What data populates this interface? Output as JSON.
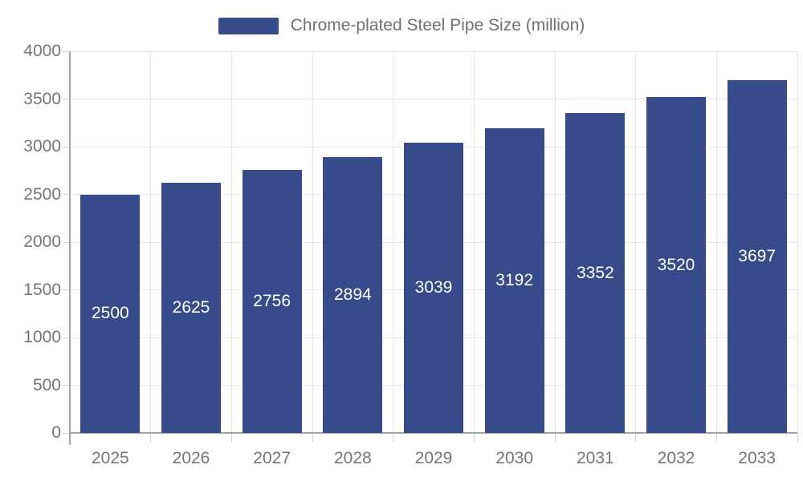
{
  "legend": {
    "label": "Chrome-plated Steel Pipe Size (million)"
  },
  "colors": {
    "bar": "#374b8c",
    "legend_swatch": "#374b8c",
    "legend_text": "#6e7079",
    "axis_label_text": "#757575",
    "grid_line": "#e6e6e6",
    "axis_line": "#a3a3a3",
    "tick_line": "#d4d4d4",
    "value_label_text": "#ffffff",
    "background": "#ffffff"
  },
  "chart_data": {
    "type": "bar",
    "categories": [
      "2025",
      "2026",
      "2027",
      "2028",
      "2029",
      "2030",
      "2031",
      "2032",
      "2033"
    ],
    "series": [
      {
        "name": "Chrome-plated Steel Pipe Size (million)",
        "values": [
          2500,
          2625,
          2756,
          2894,
          3039,
          3192,
          3352,
          3520,
          3697
        ]
      }
    ],
    "title": "",
    "xlabel": "",
    "ylabel": "",
    "ylim": [
      0,
      4000
    ],
    "yticks": [
      0,
      500,
      1000,
      1500,
      2000,
      2500,
      3000,
      3500,
      4000
    ],
    "grid": true,
    "legend_position": "top-center",
    "value_label_position": "inside-center"
  }
}
